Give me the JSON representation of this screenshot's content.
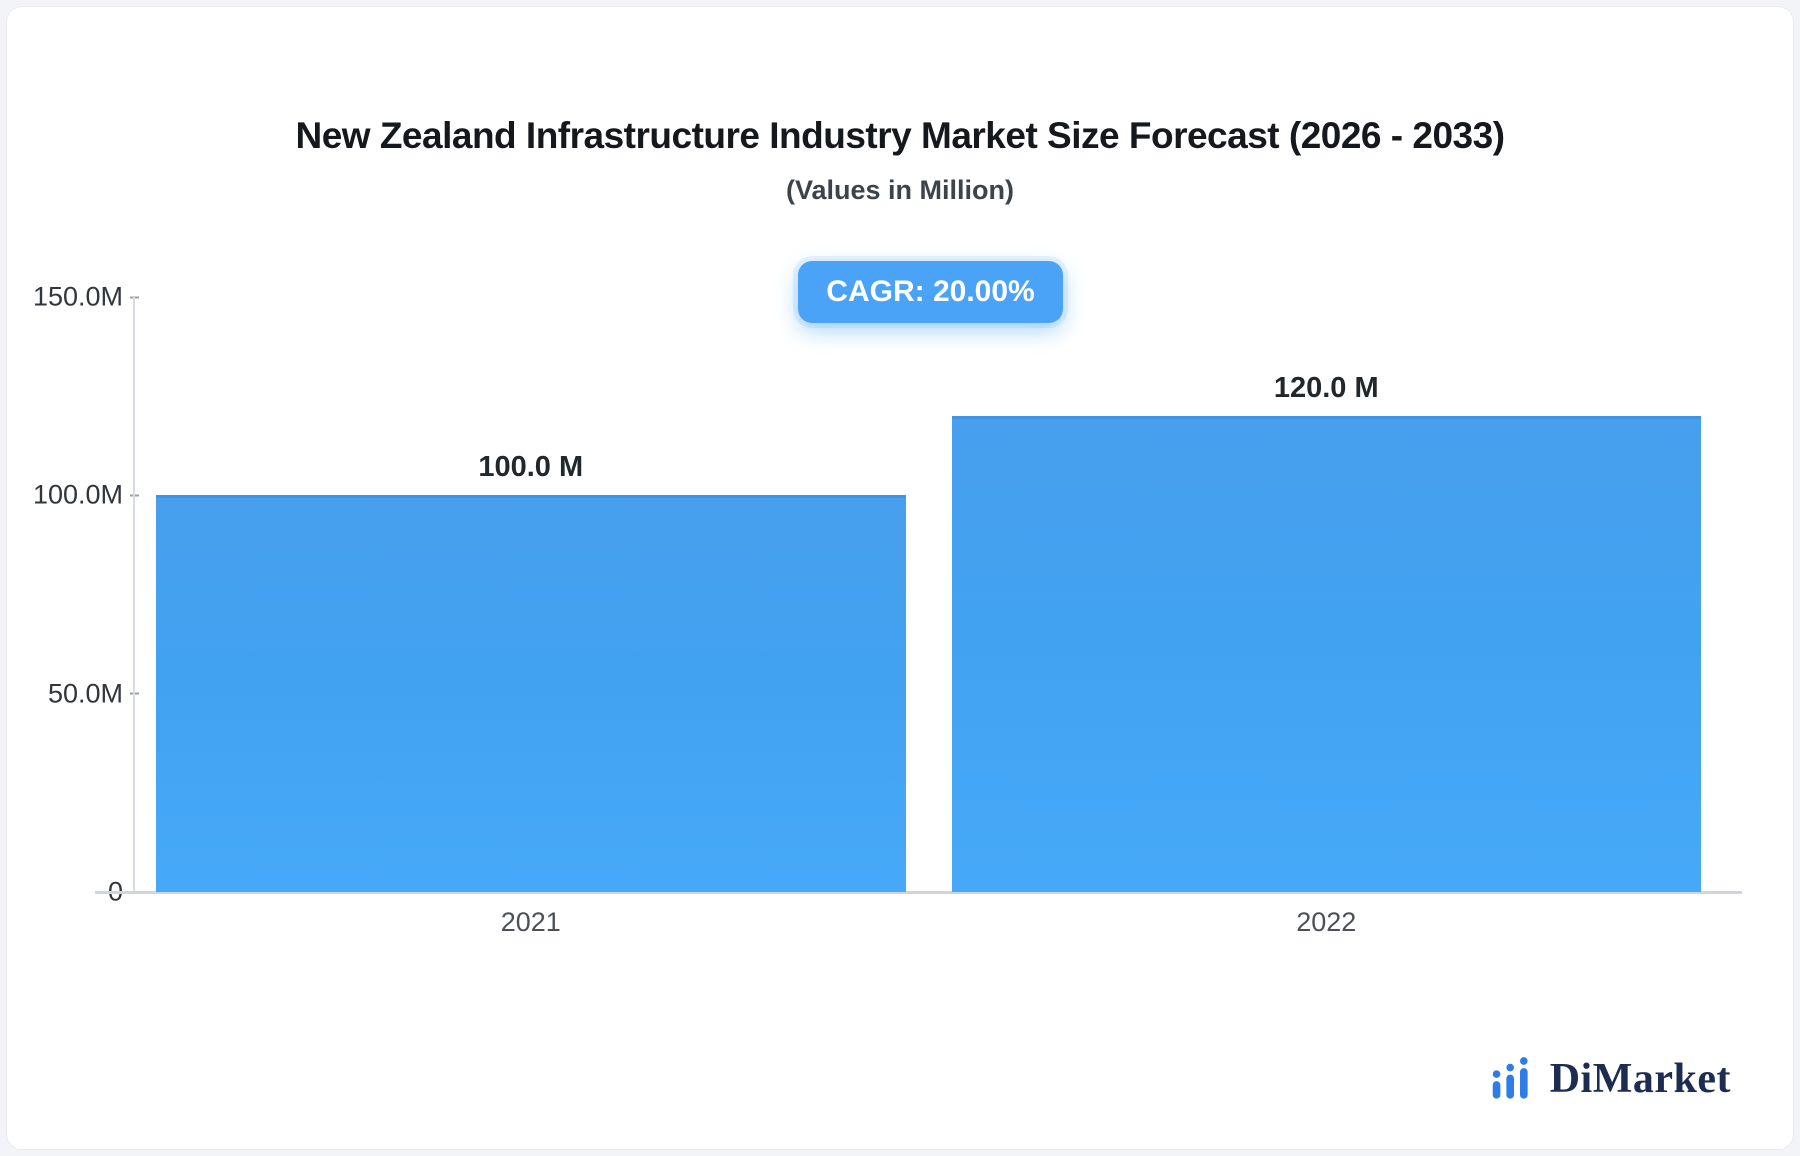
{
  "chart_data": {
    "type": "bar",
    "title": "New Zealand Infrastructure Industry Market Size Forecast (2026 - 2033)",
    "subtitle": "(Values in Million)",
    "cagr_label": "CAGR: 20.00%",
    "categories": [
      "2021",
      "2022"
    ],
    "values": [
      100,
      120
    ],
    "value_labels": [
      "100.0 M",
      "120.0 M"
    ],
    "ylim": [
      0,
      150
    ],
    "yticks": [
      {
        "value": 0,
        "label": "0"
      },
      {
        "value": 50,
        "label": "50.0M"
      },
      {
        "value": 100,
        "label": "100.0M"
      },
      {
        "value": 150,
        "label": "150.0M"
      }
    ],
    "grid": "off",
    "legend": "none",
    "bar_color": "#42a2f2",
    "badge_color": "#4aa3f7"
  },
  "footer": {
    "brand": "DiMarket"
  }
}
